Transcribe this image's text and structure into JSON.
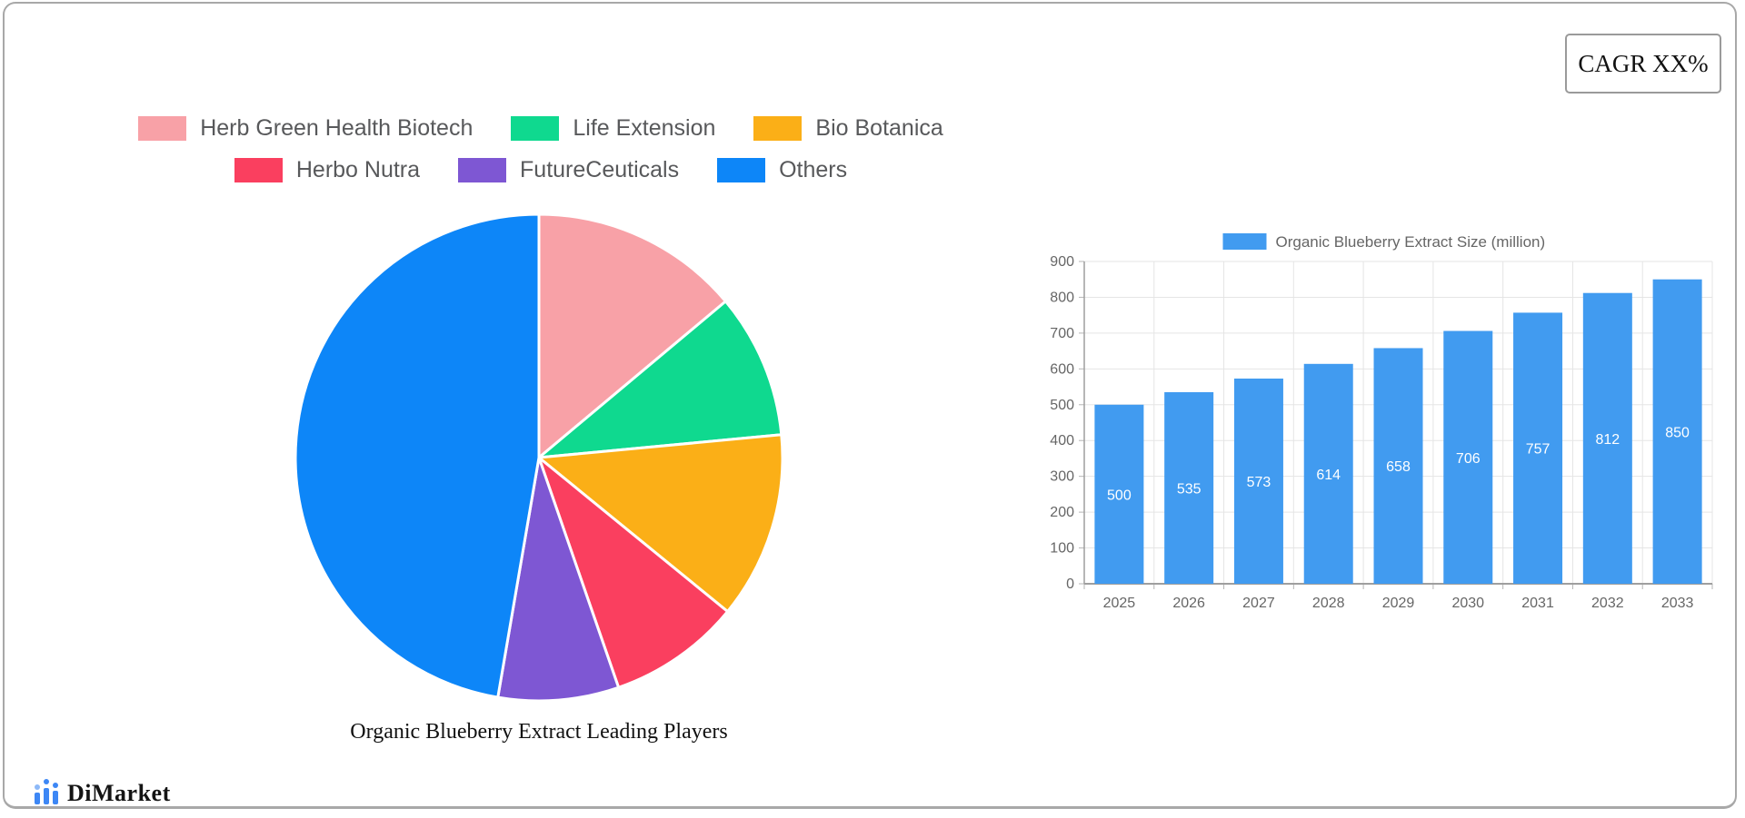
{
  "cagr_box": {
    "label": "CAGR XX%"
  },
  "watermark": {
    "brand": "DiMarket",
    "icon": "bar-chart-icon",
    "icon_color": "#3d87f5"
  },
  "chart_data": [
    {
      "type": "pie",
      "title": "Organic Blueberry Extract Leading Players",
      "legend_position": "top",
      "labels": [
        "Herb Green Health Biotech",
        "Life Extension",
        "Bio Botanica",
        "Herbo Nutra",
        "FutureCeuticals",
        "Others"
      ],
      "values": [
        13.9,
        9.6,
        12.4,
        8.8,
        8.0,
        47.3
      ],
      "colors": [
        "#F8A1A7",
        "#0FD98F",
        "#FBAF17",
        "#FA3F5F",
        "#7E57D3",
        "#0D86F8"
      ],
      "legend_rows": [
        [
          0,
          1,
          2
        ],
        [
          3,
          4,
          5
        ]
      ],
      "slice_border_color": "#ffffff",
      "start_angle_deg": 0,
      "direction": "clockwise"
    },
    {
      "type": "bar",
      "legend_label": "Organic Blueberry Extract Size (million)",
      "categories": [
        "2025",
        "2026",
        "2027",
        "2028",
        "2029",
        "2030",
        "2031",
        "2032",
        "2033"
      ],
      "values": [
        500,
        535,
        573,
        614,
        658,
        706,
        757,
        812,
        850
      ],
      "bar_color": "#419BF0",
      "value_label_color": "#ffffff",
      "value_label_position": "inside-center",
      "ylim": [
        0,
        900
      ],
      "ytick_step": 100,
      "grid": true,
      "grid_color": "#e5e5e5",
      "axis_color": "#9e9e9e",
      "tick_text_color": "#666666",
      "legend_position": "top"
    }
  ]
}
